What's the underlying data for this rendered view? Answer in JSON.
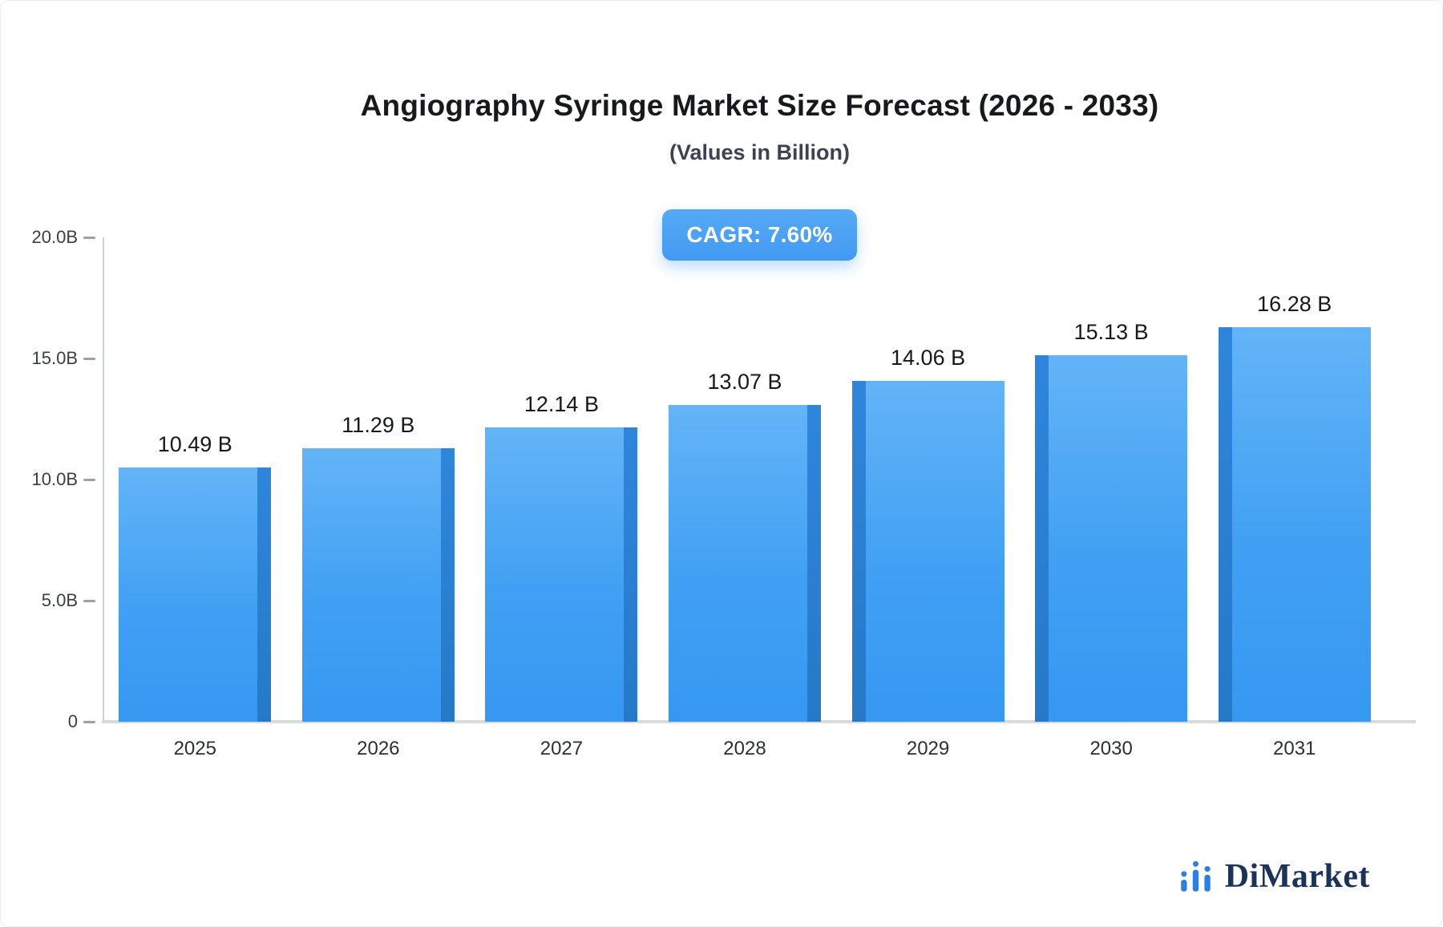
{
  "header": {
    "title": "Angiography Syringe Market Size Forecast (2026 - 2033)",
    "subtitle": "(Values in Billion)",
    "cagr_badge": "CAGR: 7.60%"
  },
  "logo": {
    "name": "DiMarket"
  },
  "colors": {
    "bar_face_top": "#63B4F7",
    "bar_face_bottom": "#3598F1",
    "bar_side": "#2A80D2",
    "badge_bg": "#4AA1F3",
    "logo_text": "#1B3358",
    "logo_icon": "#2D7FE8",
    "axis_line": "#CDD2D8",
    "baseline": "#D7DADE"
  },
  "chart_data": {
    "type": "bar",
    "title": "Angiography Syringe Market Size Forecast (2026 - 2033)",
    "subtitle": "(Values in Billion)",
    "categories": [
      "2025",
      "2026",
      "2027",
      "2028",
      "2029",
      "2030",
      "2031"
    ],
    "values": [
      10.49,
      11.29,
      12.14,
      13.07,
      14.06,
      15.13,
      16.28
    ],
    "value_labels": [
      "10.49 B",
      "11.29 B",
      "12.14 B",
      "13.07 B",
      "14.06 B",
      "15.13 B",
      "16.28 B"
    ],
    "y_ticks": [
      {
        "label": "20.0B",
        "value": 20
      },
      {
        "label": "15.0B",
        "value": 15
      },
      {
        "label": "10.0B",
        "value": 10
      },
      {
        "label": "5.0B",
        "value": 5
      },
      {
        "label": "0",
        "value": 0
      }
    ],
    "ylim": [
      0,
      20
    ],
    "xlabel": "",
    "ylabel": "",
    "grid": false,
    "legend": false,
    "annotations": [
      "CAGR: 7.60%"
    ]
  }
}
